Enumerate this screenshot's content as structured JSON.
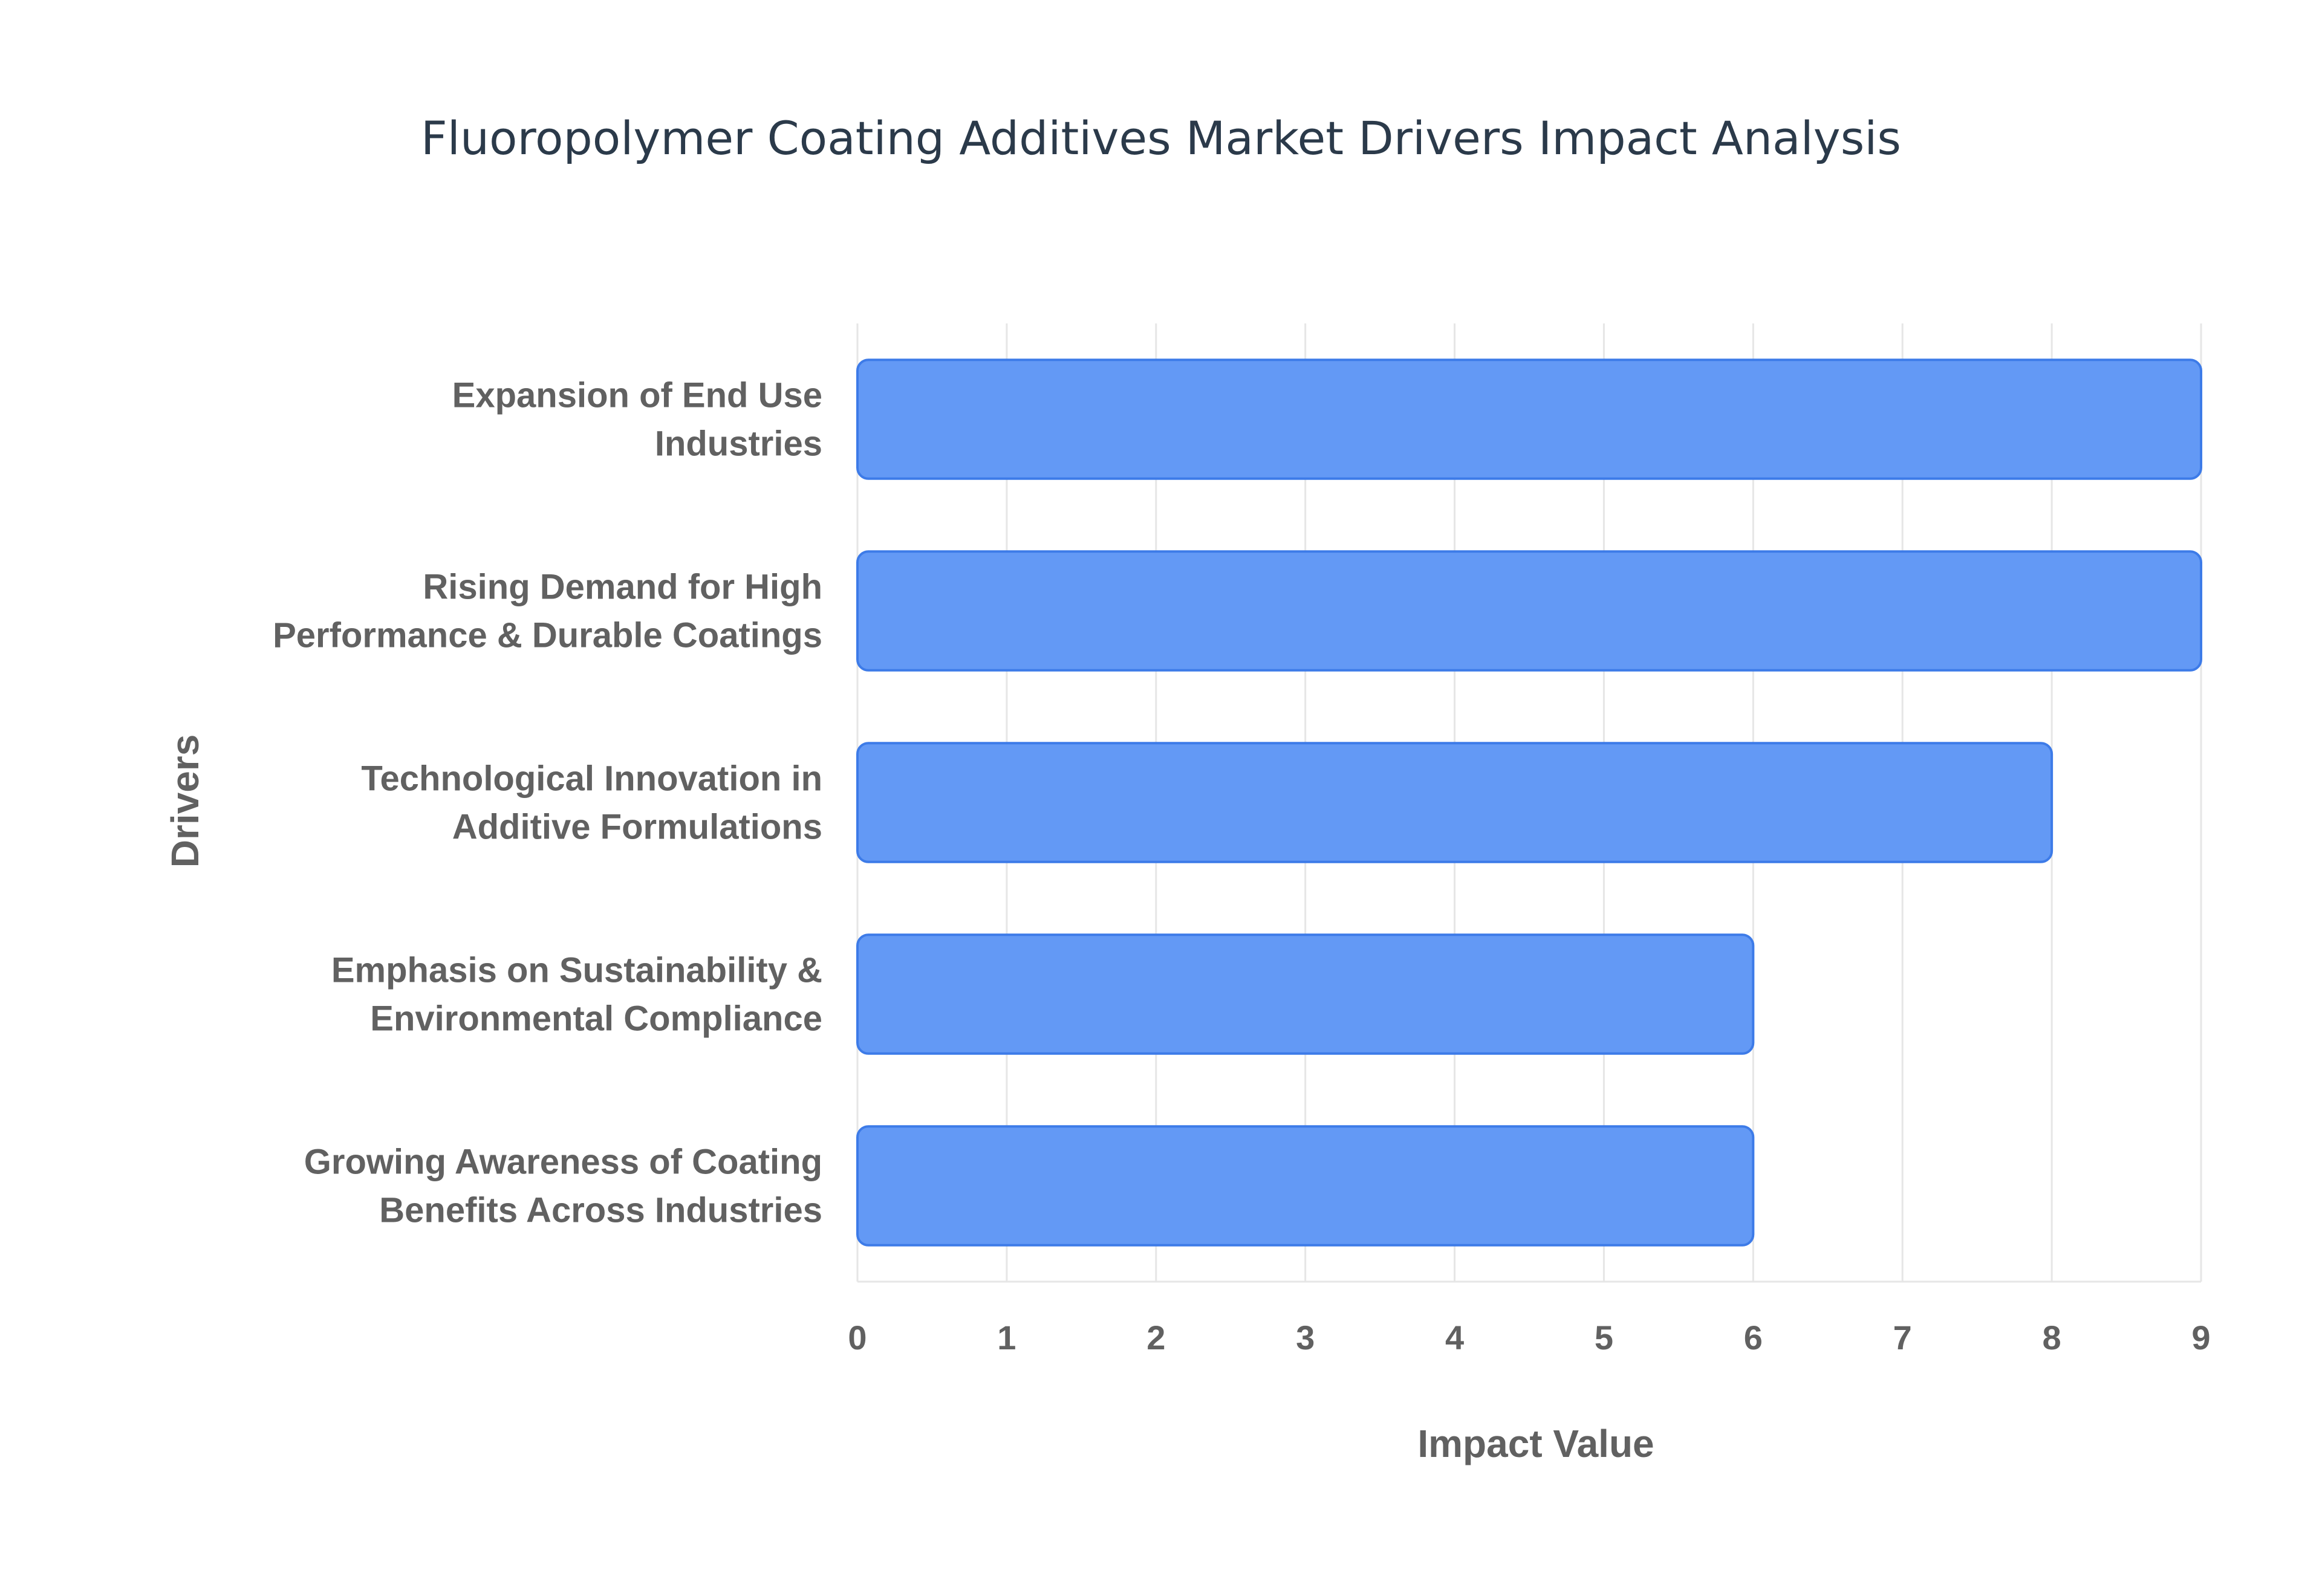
{
  "chart_data": {
    "type": "bar",
    "orientation": "horizontal",
    "title": "Fluoropolymer Coating Additives Market Drivers Impact Analysis",
    "xlabel": "Impact Value",
    "ylabel": "Drivers",
    "xlim": [
      0,
      9
    ],
    "xticks": [
      "0",
      "1",
      "2",
      "3",
      "4",
      "5",
      "6",
      "7",
      "8",
      "9"
    ],
    "categories": [
      [
        "Expansion of End Use",
        "Industries"
      ],
      [
        "Rising Demand for High",
        "Performance & Durable Coatings"
      ],
      [
        "Technological Innovation in",
        "Additive Formulations"
      ],
      [
        "Emphasis on Sustainability &",
        "Environmental Compliance"
      ],
      [
        "Growing Awareness of Coating",
        "Benefits Across Industries"
      ]
    ],
    "values": [
      9,
      9,
      8,
      6,
      6
    ],
    "grid": true,
    "colors": {
      "bar_fill": "#6399f5",
      "bar_stroke": "#3d7be8",
      "grid": "#e6e6e6",
      "text": "#616161",
      "title": "#2b3a4a"
    }
  }
}
